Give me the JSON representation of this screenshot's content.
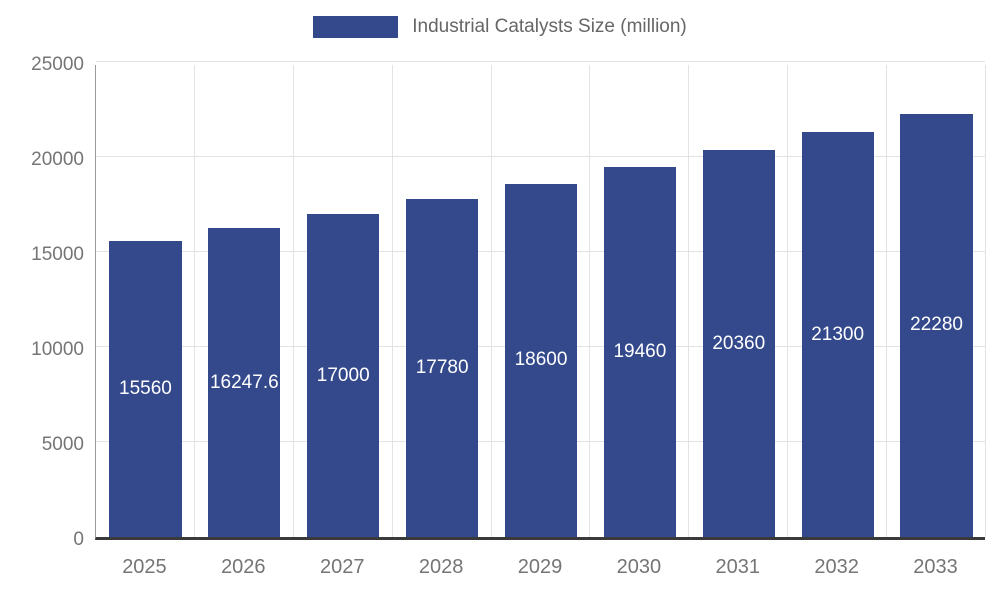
{
  "legend": {
    "label": "Industrial Catalysts Size (million)",
    "swatch_color": "#34498c"
  },
  "chart_data": {
    "type": "bar",
    "title": "Industrial Catalysts Size (million)",
    "categories": [
      "2025",
      "2026",
      "2027",
      "2028",
      "2029",
      "2030",
      "2031",
      "2032",
      "2033"
    ],
    "values": [
      15560,
      16247.6,
      17000,
      17780,
      18600,
      19460,
      20360,
      21300,
      22280
    ],
    "value_labels": [
      "15560",
      "16247.6",
      "17000",
      "17780",
      "18600",
      "19460",
      "20360",
      "21300",
      "22280"
    ],
    "xlabel": "",
    "ylabel": "",
    "ylim": [
      0,
      25000
    ],
    "yticks": [
      0,
      5000,
      10000,
      15000,
      20000,
      25000
    ],
    "grid": true,
    "legend_position": "top",
    "bar_color": "#34498c",
    "value_label_color": "#ffffff",
    "axis_label_color": "#757575"
  }
}
